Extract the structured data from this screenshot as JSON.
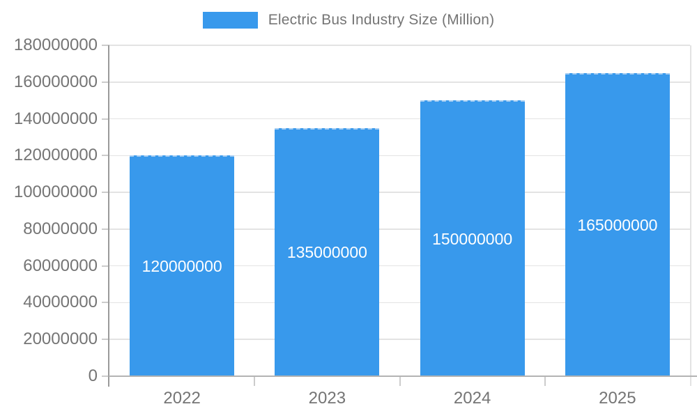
{
  "chart_data": {
    "type": "bar",
    "title": "Electric Bus Industry Size (Million)",
    "categories": [
      "2022",
      "2023",
      "2024",
      "2025"
    ],
    "values": [
      120000000,
      135000000,
      150000000,
      165000000
    ],
    "bar_value_labels": [
      "120000000",
      "135000000",
      "150000000",
      "165000000"
    ],
    "xlabel": "",
    "ylabel": "",
    "ylim": [
      0,
      180000000
    ],
    "y_ticks": [
      0,
      20000000,
      40000000,
      60000000,
      80000000,
      100000000,
      120000000,
      140000000,
      160000000,
      180000000
    ],
    "grid": true,
    "legend_position": "top",
    "dashed_top_bars": [
      0,
      1,
      2,
      3
    ],
    "colors": {
      "bar": "#3899EC",
      "bar_dashed_top": "#A5CDF2",
      "grid": "#E3E3E3",
      "y_axis_line": "#9A9A9A",
      "x_axis_line": "#B3B3B3",
      "tick": "#CCCCCC",
      "axis_text": "#757575",
      "bar_label_text": "#FFFFFF",
      "background": "#FFFFFF"
    }
  }
}
